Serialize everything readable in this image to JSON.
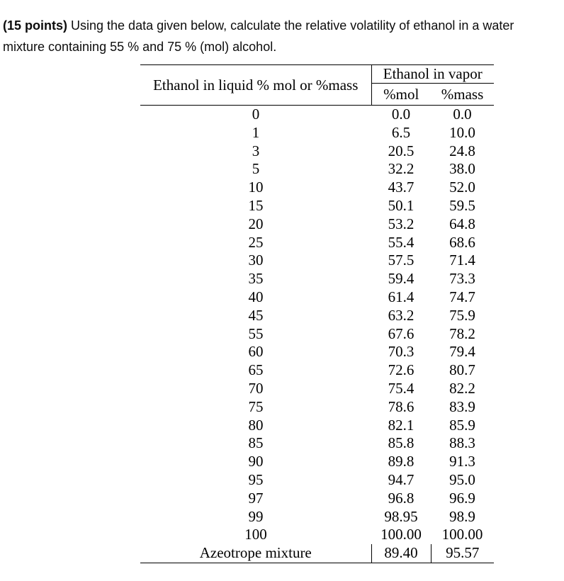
{
  "intro": {
    "points_bold": "(15 points)",
    "line1_rest": " Using the data given below, calculate the relative volatility of ethanol in a water",
    "line2": "mixture containing 55 % and 75 % (mol) alcohol."
  },
  "table": {
    "liquid_header": "Ethanol in liquid % mol or %mass",
    "vapor_header": "Ethanol in vapor",
    "vapor_subheaders": [
      "%mol",
      "%mass"
    ],
    "rows": [
      {
        "liquid": "0",
        "mol": "0.0",
        "mass": "0.0"
      },
      {
        "liquid": "1",
        "mol": "6.5",
        "mass": "10.0"
      },
      {
        "liquid": "3",
        "mol": "20.5",
        "mass": "24.8"
      },
      {
        "liquid": "5",
        "mol": "32.2",
        "mass": "38.0"
      },
      {
        "liquid": "10",
        "mol": "43.7",
        "mass": "52.0"
      },
      {
        "liquid": "15",
        "mol": "50.1",
        "mass": "59.5"
      },
      {
        "liquid": "20",
        "mol": "53.2",
        "mass": "64.8"
      },
      {
        "liquid": "25",
        "mol": "55.4",
        "mass": "68.6"
      },
      {
        "liquid": "30",
        "mol": "57.5",
        "mass": "71.4"
      },
      {
        "liquid": "35",
        "mol": "59.4",
        "mass": "73.3"
      },
      {
        "liquid": "40",
        "mol": "61.4",
        "mass": "74.7"
      },
      {
        "liquid": "45",
        "mol": "63.2",
        "mass": "75.9"
      },
      {
        "liquid": "55",
        "mol": "67.6",
        "mass": "78.2"
      },
      {
        "liquid": "60",
        "mol": "70.3",
        "mass": "79.4"
      },
      {
        "liquid": "65",
        "mol": "72.6",
        "mass": "80.7"
      },
      {
        "liquid": "70",
        "mol": "75.4",
        "mass": "82.2"
      },
      {
        "liquid": "75",
        "mol": "78.6",
        "mass": "83.9"
      },
      {
        "liquid": "80",
        "mol": "82.1",
        "mass": "85.9"
      },
      {
        "liquid": "85",
        "mol": "85.8",
        "mass": "88.3"
      },
      {
        "liquid": "90",
        "mol": "89.8",
        "mass": "91.3"
      },
      {
        "liquid": "95",
        "mol": "94.7",
        "mass": "95.0"
      },
      {
        "liquid": "97",
        "mol": "96.8",
        "mass": "96.9"
      },
      {
        "liquid": "99",
        "mol": "98.95",
        "mass": "98.9"
      },
      {
        "liquid": "100",
        "mol": "100.00",
        "mass": "100.00"
      },
      {
        "liquid": "Azeotrope mixture",
        "mol": "89.40",
        "mass": "95.57"
      }
    ]
  }
}
